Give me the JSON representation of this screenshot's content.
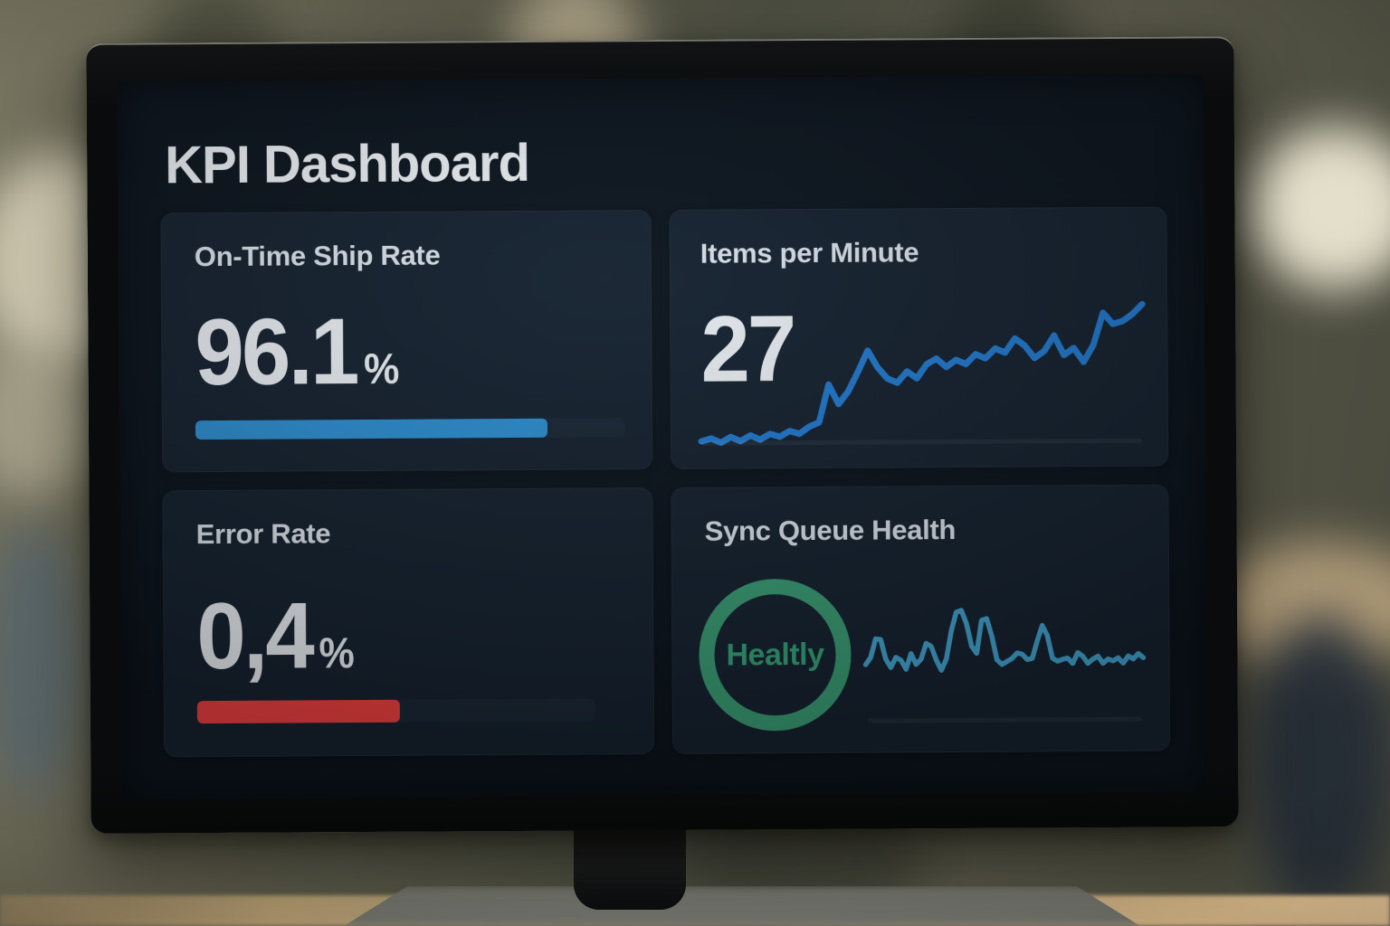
{
  "dashboard": {
    "title": "KPI Dashboard",
    "cards": {
      "on_time_ship_rate": {
        "title": "On-Time Ship Rate",
        "value": "96.1",
        "unit": "%",
        "progress_pct": 82,
        "bar_color": "#2e8ecf"
      },
      "items_per_minute": {
        "title": "Items per Minute",
        "value": "27",
        "line_color": "#2379cd"
      },
      "error_rate": {
        "title": "Error Rate",
        "value": "0,4",
        "unit": "%",
        "progress_pct": 51,
        "bar_color": "#ee4040"
      },
      "sync_queue_health": {
        "title": "Sync Queue Health",
        "status_label": "Healtly",
        "ring_color": "#3a9c74",
        "label_color": "#35a077",
        "line_color": "#42a3cf"
      }
    },
    "colors": {
      "screen_bg": "#0d151e",
      "card_bg": "#16222f",
      "track_color": "#1b2835",
      "text_primary": "#e9eef3"
    }
  },
  "chart_data": [
    {
      "type": "line",
      "title": "Items per Minute",
      "kpi_value": 27,
      "axes_visible": false,
      "legend": false,
      "series": [
        {
          "name": "items-per-minute-trend",
          "values_normalized_0_100": [
            3,
            5,
            2,
            6,
            3,
            7,
            4,
            8,
            6,
            10,
            8,
            13,
            16,
            43,
            29,
            38,
            52,
            67,
            55,
            47,
            44,
            52,
            47,
            57,
            61,
            55,
            60,
            57,
            64,
            61,
            68,
            65,
            75,
            70,
            61,
            66,
            77,
            63,
            68,
            58,
            70,
            93,
            85,
            87,
            92,
            99
          ]
        }
      ]
    },
    {
      "type": "line",
      "title": "Sync Queue Health",
      "kpi_status": "Healtly",
      "axes_visible": false,
      "legend": false,
      "series": [
        {
          "name": "sync-queue-activity",
          "values_normalized_0_100": [
            10,
            22,
            53,
            52,
            19,
            5,
            22,
            17,
            2,
            28,
            10,
            19,
            45,
            40,
            17,
            0,
            19,
            66,
            97,
            100,
            78,
            40,
            28,
            83,
            86,
            57,
            17,
            9,
            14,
            19,
            28,
            26,
            17,
            19,
            48,
            74,
            57,
            19,
            14,
            17,
            19,
            10,
            28,
            22,
            10,
            17,
            22,
            10,
            17,
            14,
            19,
            10,
            22,
            17,
            26,
            19
          ]
        }
      ]
    },
    {
      "type": "progress",
      "title": "On-Time Ship Rate",
      "value_label": "96.1%",
      "fill_pct": 82,
      "fill_color": "#2e8ecf"
    },
    {
      "type": "progress",
      "title": "Error Rate",
      "value_label": "0,4%",
      "fill_pct": 51,
      "fill_color": "#ee4040"
    }
  ]
}
